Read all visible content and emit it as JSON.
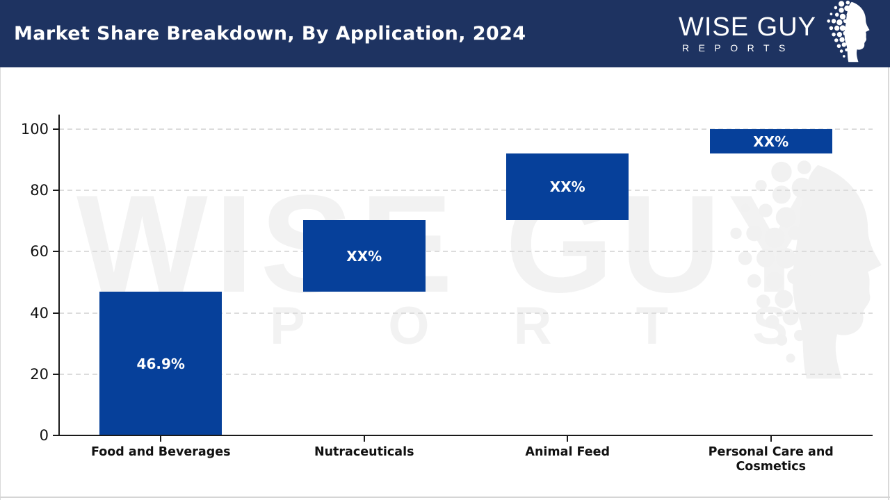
{
  "header": {
    "title": "Market Share Breakdown, By Application, 2024",
    "bg_color": "#1e3361",
    "logo": {
      "wordmark": "WISE GUY",
      "subtext": "REPORTS"
    }
  },
  "watermark": {
    "line1": "WISE GUY",
    "line2": "P O R T S"
  },
  "chart_data": {
    "type": "bar",
    "subtype": "waterfall",
    "title": "Market Share Breakdown, By Application, 2024",
    "categories": [
      "Food and Beverages",
      "Nutraceuticals",
      "Animal Feed",
      "Personal Care and Cosmetics"
    ],
    "segments": [
      {
        "category": "Food and Beverages",
        "start": 0,
        "end": 46.9,
        "label": "46.9%"
      },
      {
        "category": "Nutraceuticals",
        "start": 46.9,
        "end": 70.3,
        "label": "XX%"
      },
      {
        "category": "Animal Feed",
        "start": 70.3,
        "end": 92.0,
        "label": "XX%"
      },
      {
        "category": "Personal Care and Cosmetics",
        "start": 92.0,
        "end": 100.0,
        "label": "XX%"
      }
    ],
    "y_ticks": [
      0,
      20,
      40,
      60,
      80,
      100
    ],
    "ylim": [
      0,
      100
    ],
    "xlabel": "",
    "ylabel": "",
    "grid": "horizontal-dashed",
    "legend": "none",
    "bar_color": "#06409a",
    "bar_label_color": "#ffffff",
    "axis_color": "#1a1a1a",
    "grid_color": "#dcdcdc"
  }
}
